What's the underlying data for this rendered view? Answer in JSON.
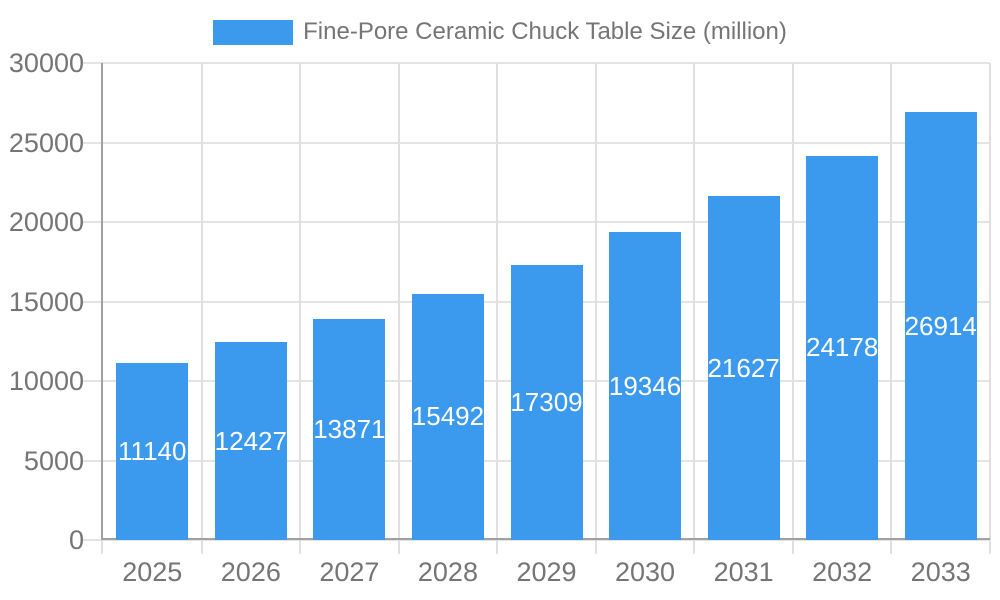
{
  "legend": {
    "label": "Fine-Pore Ceramic Chuck Table Size (million)"
  },
  "chart_data": {
    "type": "bar",
    "title": "Fine-Pore Ceramic Chuck Table Size (million)",
    "categories": [
      "2025",
      "2026",
      "2027",
      "2028",
      "2029",
      "2030",
      "2031",
      "2032",
      "2033"
    ],
    "values": [
      11140,
      12427,
      13871,
      15492,
      17309,
      19346,
      21627,
      24178,
      26914
    ],
    "xlabel": "",
    "ylabel": "",
    "ylim": [
      0,
      30000
    ],
    "yticks": [
      0,
      5000,
      10000,
      15000,
      20000,
      25000,
      30000
    ],
    "grid": true,
    "legend_position": "top-center",
    "bar_value_labels": "inside-middle",
    "colors": {
      "bar": "#3b99ee",
      "axis_text": "#757575",
      "bar_label_text": "#ffffff",
      "grid_line": "#e4e4e4",
      "axis_line": "#a0a0a0",
      "background": "#ffffff"
    }
  }
}
